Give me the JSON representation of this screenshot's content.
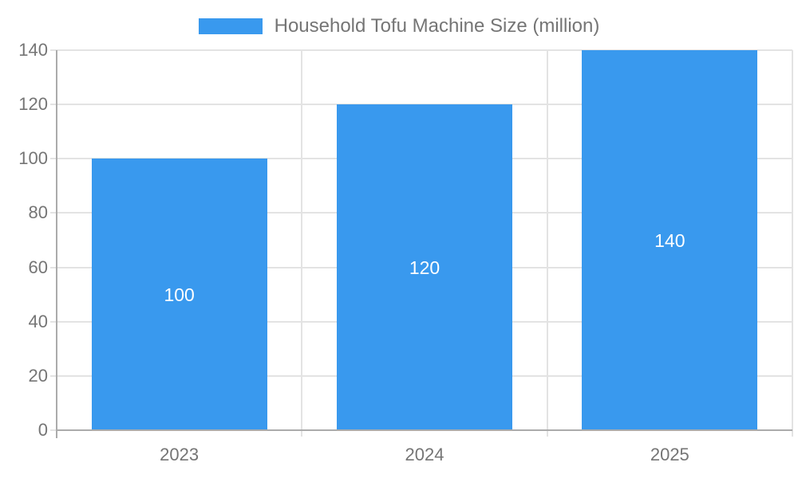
{
  "chart_data": {
    "type": "bar",
    "title": "",
    "legend": "Household Tofu Machine Size (million)",
    "legend_position": "top-center",
    "categories": [
      "2023",
      "2024",
      "2025"
    ],
    "series": [
      {
        "name": "Household Tofu Machine Size (million)",
        "values": [
          100,
          120,
          140
        ]
      }
    ],
    "data_labels": [
      "100",
      "120",
      "140"
    ],
    "xlabel": "",
    "ylabel": "",
    "ylim": [
      0,
      140
    ],
    "yticks": [
      0,
      20,
      40,
      60,
      80,
      100,
      120,
      140
    ],
    "grid": true,
    "colors": {
      "bar": "#3999ee",
      "gridline": "#e3e3e3",
      "axis_line": "#ababab",
      "tick_label": "#757575",
      "data_label": "#ffffff",
      "background": "#ffffff"
    }
  }
}
